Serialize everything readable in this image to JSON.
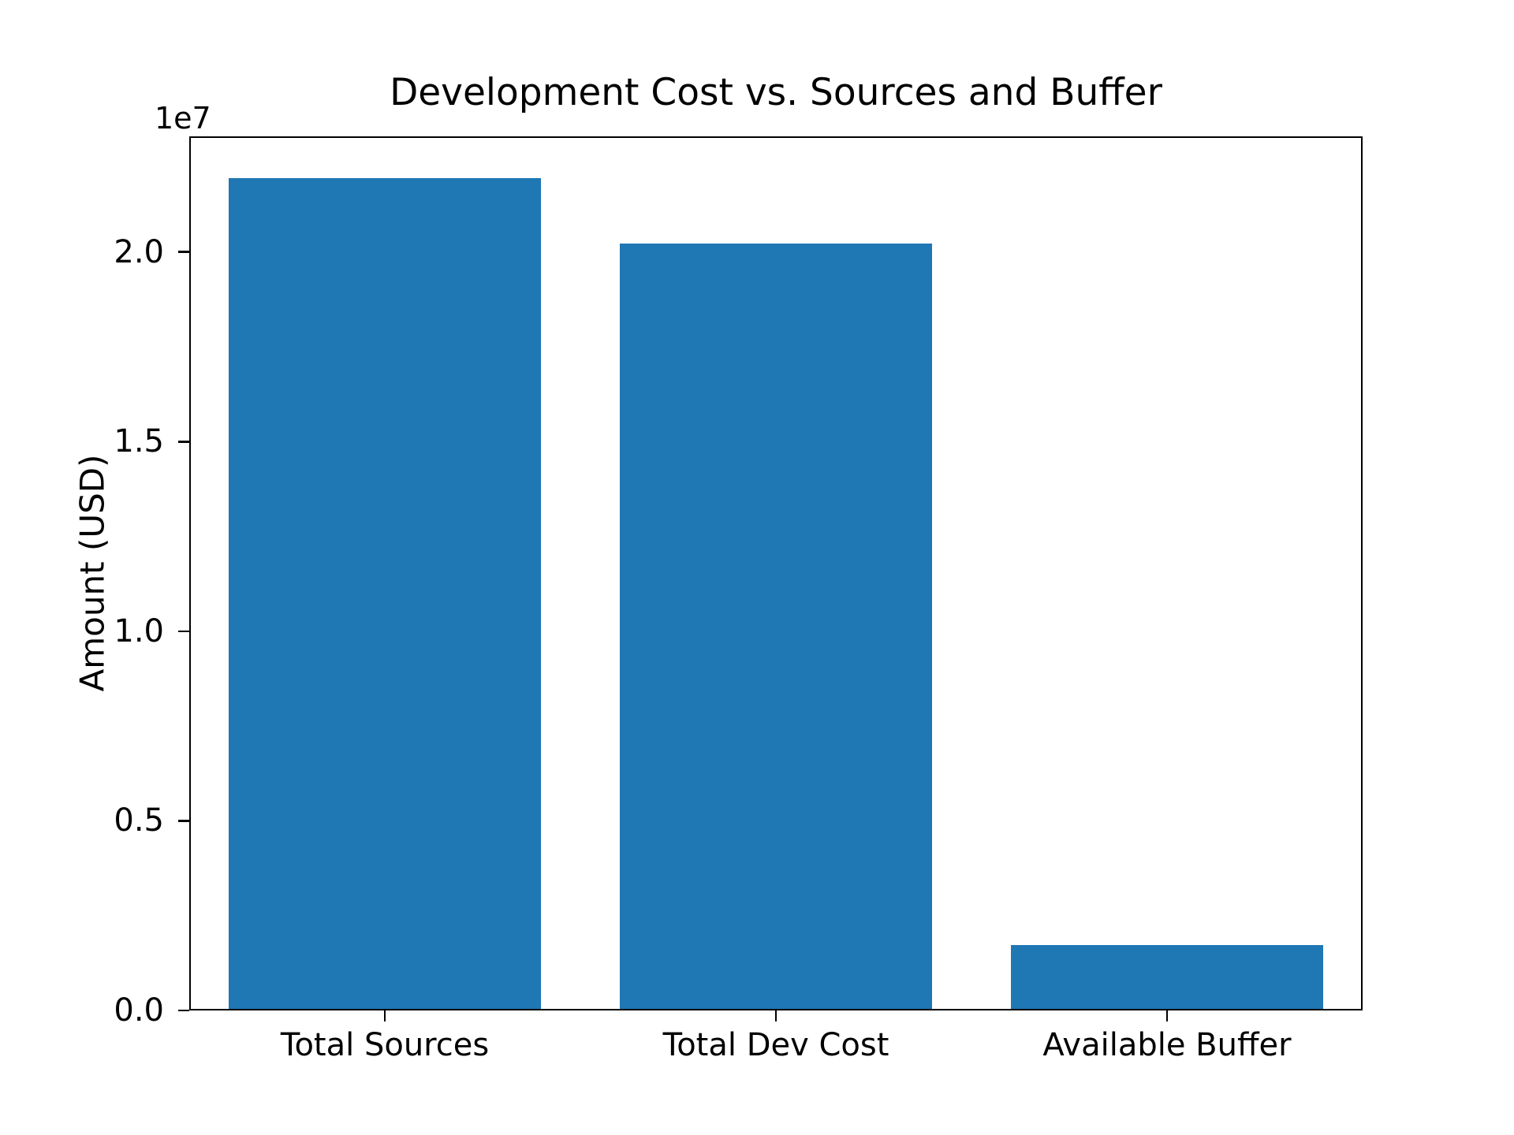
{
  "figure": {
    "background_color": "#ffffff",
    "text_color": "#000000"
  },
  "chart_data": {
    "type": "bar",
    "title": "Development Cost vs. Sources and Buffer",
    "xlabel": "",
    "ylabel": "Amount (USD)",
    "offset_text": "1e7",
    "categories": [
      "Total Sources",
      "Total Dev Cost",
      "Available Buffer"
    ],
    "values": [
      21950000,
      20230000,
      1720000
    ],
    "bar_color": "#1f77b4",
    "bar_width_fraction": 0.8,
    "ylim": [
      0,
      23050000
    ],
    "yticks": [
      0,
      5000000,
      10000000,
      15000000,
      20000000
    ],
    "ytick_labels": [
      "0.0",
      "0.5",
      "1.0",
      "1.5",
      "2.0"
    ],
    "grid": false,
    "legend": null
  }
}
